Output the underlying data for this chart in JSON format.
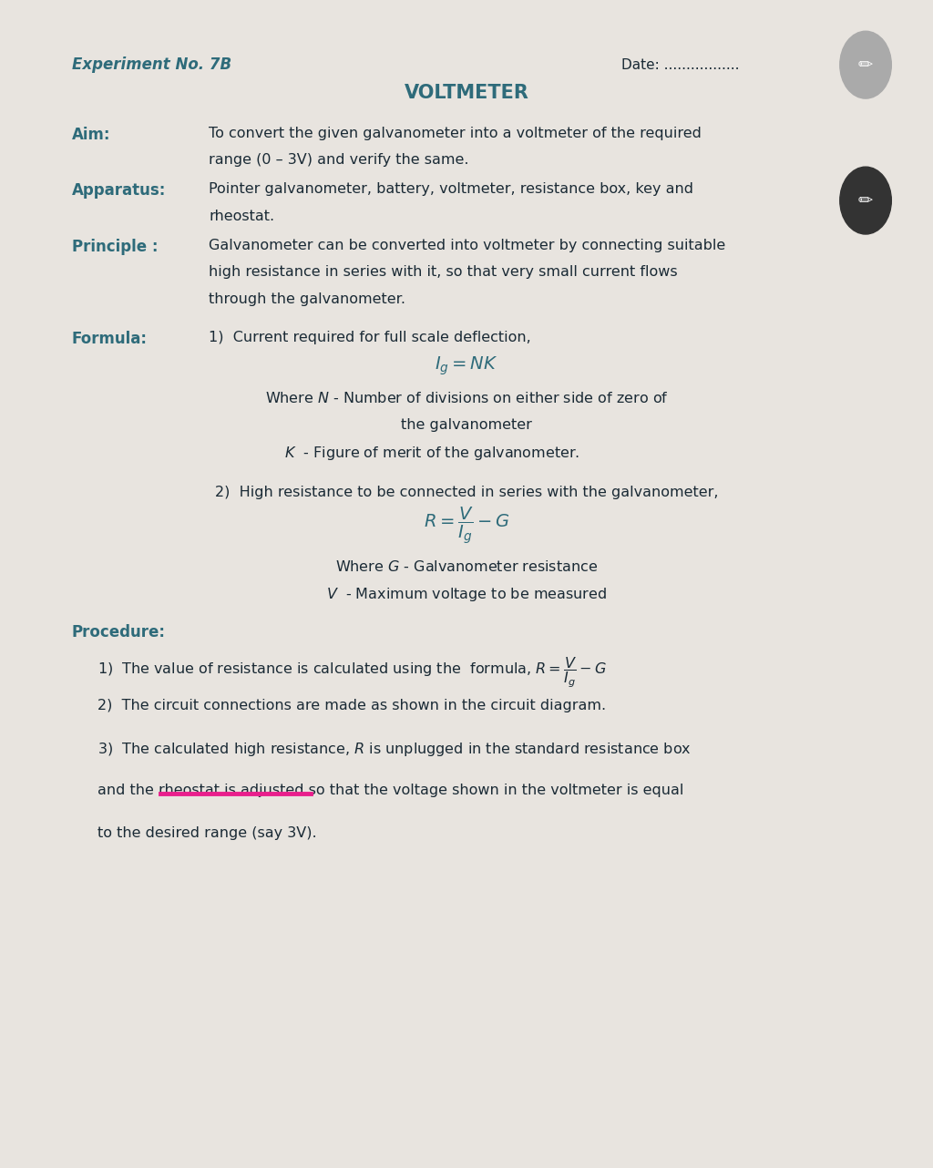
{
  "page_bg": "#e8e4df",
  "content_bg": "#f7f5f2",
  "teal": "#2e6b7a",
  "dark": "#1a2a35",
  "pink": "#e91e8c",
  "experiment_label": "Experiment No. 7B",
  "date_label": "Date: .................",
  "title": "VOLTMETER",
  "aim_label": "Aim:",
  "aim_line1": "To convert the given galvanometer into a voltmeter of the required",
  "aim_line2": "range (0 – 3V) and verify the same.",
  "apparatus_label": "Apparatus:",
  "apparatus_line1": "Pointer galvanometer, battery, voltmeter, resistance box, key and",
  "apparatus_line2": "rheostat.",
  "principle_label": "Principle :",
  "principle_line1": "Galvanometer can be converted into voltmeter by connecting suitable",
  "principle_line2": "high resistance in series with it, so that very small current flows",
  "principle_line3": "through the galvanometer.",
  "formula_label": "Formula:",
  "formula_1_intro": "1)  Current required for full scale deflection,",
  "formula_1_eq": "$I_g = NK$",
  "formula_1_whereN": "Where $N$ - Number of divisions on either side of zero of",
  "formula_1_galv": "the galvanometer",
  "formula_1_whereK": "$K$  - Figure of merit of the galvanometer.",
  "formula_2_intro": "2)  High resistance to be connected in series with the galvanometer,",
  "formula_2_eq": "$R = \\dfrac{V}{I_g} - G$",
  "formula_2_whereG": "Where $G$ - Galvanometer resistance",
  "formula_2_whereV": "$V$  - Maximum voltage to be measured",
  "proc_label": "Procedure:",
  "proc1": "1)  The value of resistance is calculated using the  formula, $R = \\dfrac{V}{I_g} - G$",
  "proc2": "2)  The circuit connections are made as shown in the circuit diagram.",
  "proc3a": "3)  The calculated high resistance, $R$ is unplugged in the standard resistance box",
  "proc3b_pre": "and the ",
  "proc3b_underlined": "rheostat is adjusted",
  "proc3b_post": " so that the voltage shown in the ",
  "proc3b_bold_end": "voltmeter is equal",
  "proc3c": "to the desired range (say 3V).",
  "circle1_color": "#aaaaaa",
  "circle2_color": "#333333"
}
